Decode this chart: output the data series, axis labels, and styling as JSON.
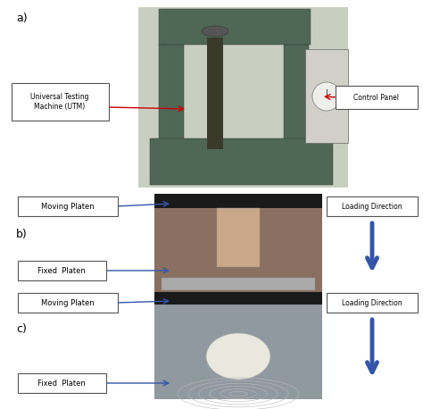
{
  "bg_color": "#ffffff",
  "fig_label_a": "a)",
  "fig_label_b": "b)",
  "fig_label_c": "c)",
  "utm_label": "Universal Testing\nMachine (UTM)",
  "control_panel_label": "Control Panel",
  "moving_platen_b_label": "Moving Platen",
  "fixed_platen_b_label": "Fixed  Platen",
  "moving_platen_c_label": "Moving Platen",
  "fixed_platen_c_label": "Fixed  Platen",
  "loading_direction_b_label": "Loading Direction",
  "loading_direction_c_label": "Loading Direction",
  "arrow_color_red": "#cc0000",
  "arrow_color_blue": "#3355aa",
  "text_color": "#000000",
  "photo_a_bg": "#b0b8a8",
  "photo_b_bg": "#8a7060",
  "photo_c_bg": "#9098a0"
}
